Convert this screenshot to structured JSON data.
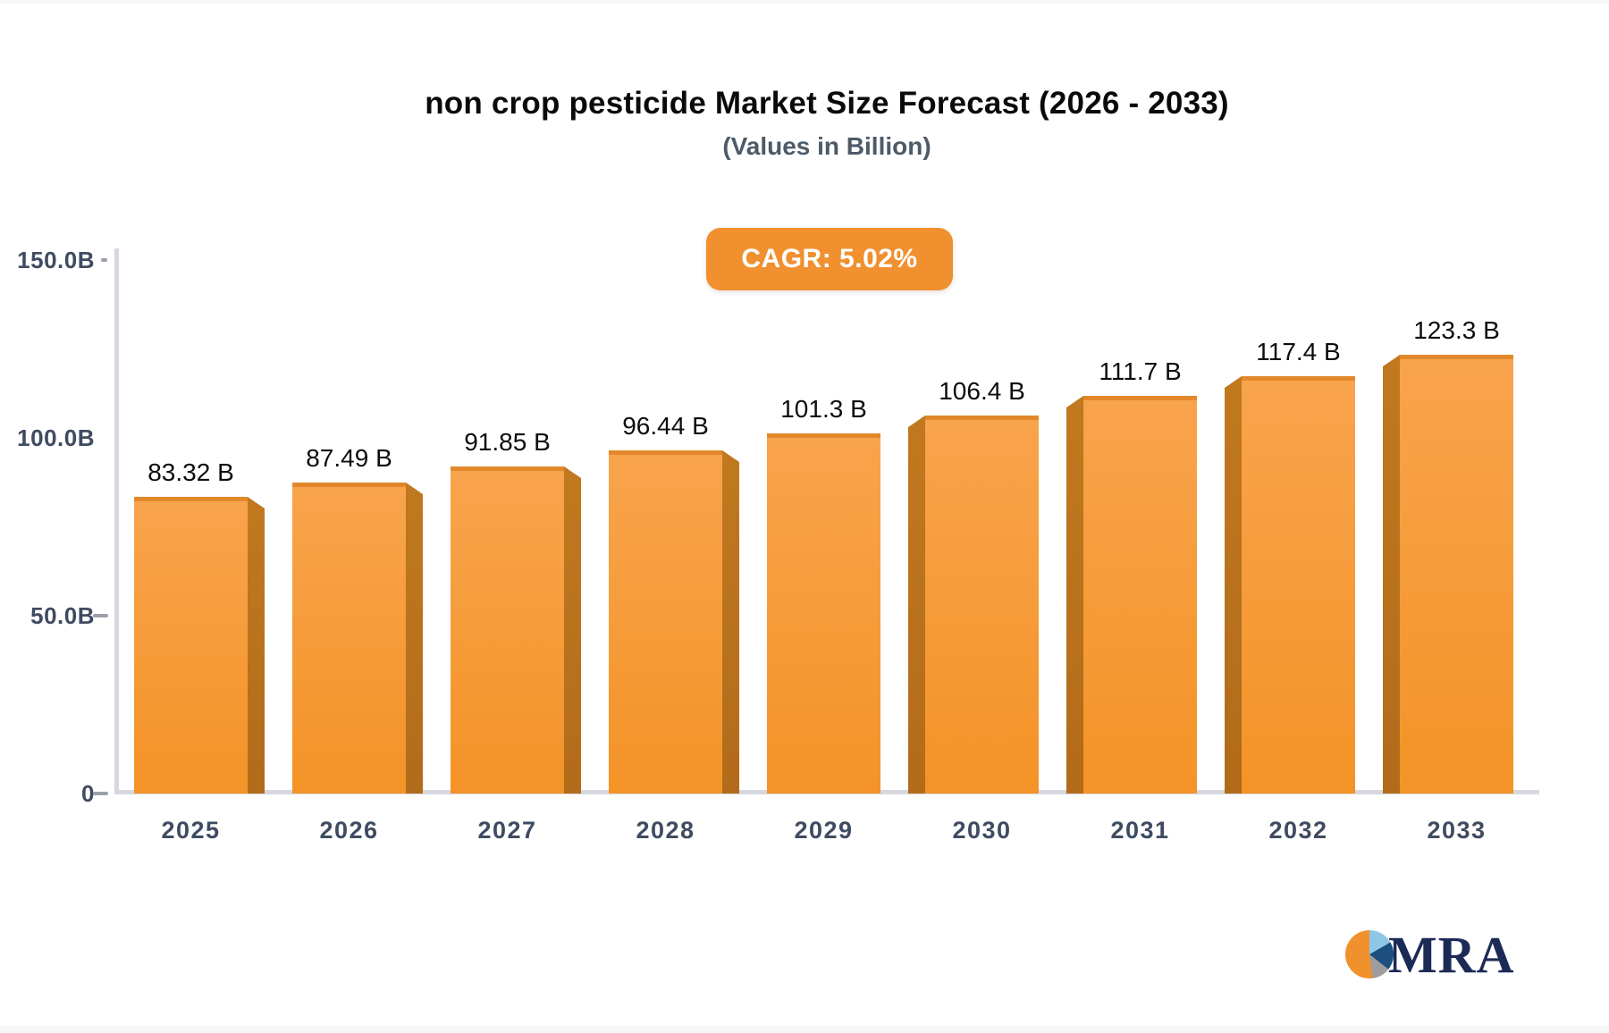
{
  "header": {
    "title": "non crop pesticide Market Size Forecast (2026 - 2033)",
    "subtitle": "(Values in Billion)"
  },
  "badge": {
    "label": "CAGR: 5.02%",
    "bg": "#F0902E",
    "text_color": "#FFFFFF"
  },
  "chart_data": {
    "type": "bar",
    "title": "non crop pesticide Market Size Forecast (2026 - 2033)",
    "subtitle": "(Values in Billion)",
    "cagr_percent": 5.02,
    "unit": "Billion",
    "categories": [
      "2025",
      "2026",
      "2027",
      "2028",
      "2029",
      "2030",
      "2031",
      "2032",
      "2033"
    ],
    "values": [
      83.32,
      87.49,
      91.85,
      96.44,
      101.3,
      106.4,
      111.7,
      117.4,
      123.3
    ],
    "value_labels": [
      "83.32 B",
      "87.49 B",
      "91.85 B",
      "96.44 B",
      "101.3 B",
      "106.4 B",
      "111.7 B",
      "117.4 B",
      "123.3 B"
    ],
    "ylim": [
      0,
      150
    ],
    "yticks": [
      {
        "label": "150.0B",
        "value": 150,
        "dash": "small"
      },
      {
        "label": "100.0B",
        "value": 100,
        "dash": "none"
      },
      {
        "label": "50.0B",
        "value": 50,
        "dash": "full"
      },
      {
        "label": "0",
        "value": 0,
        "dash": "full"
      }
    ],
    "grid": false,
    "legend": false,
    "bar_style_3d": true,
    "bar_colors": {
      "face_top": "#F8A44D",
      "face_bottom": "#F49327",
      "side": "#B9711C",
      "top_edge": "#E2882B"
    },
    "axis_colors": {
      "line": "#D5D8DF",
      "labels": "#3F4B61",
      "value_labels": "#0D0D0D"
    }
  },
  "logo": {
    "text": "MRA",
    "text_color": "#1C2A56",
    "pie_colors": {
      "orange": "#F0912D",
      "light_blue": "#8EC7E6",
      "navy": "#1D4F7C",
      "gray": "#9E9C9C"
    }
  }
}
